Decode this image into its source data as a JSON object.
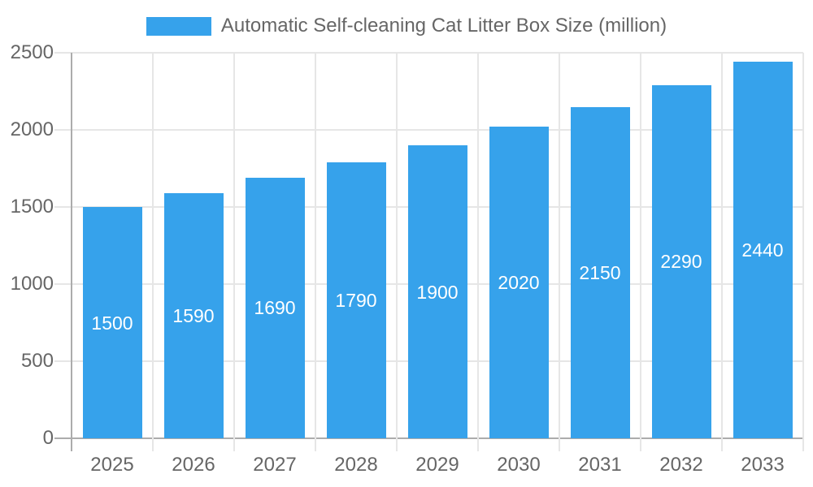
{
  "legend": {
    "label": "Automatic Self-cleaning Cat Litter Box Size (million)"
  },
  "chart_data": {
    "type": "bar",
    "title": "Automatic Self-cleaning Cat Litter Box Size (million)",
    "categories": [
      "2025",
      "2026",
      "2027",
      "2028",
      "2029",
      "2030",
      "2031",
      "2032",
      "2033"
    ],
    "values": [
      1500,
      1590,
      1690,
      1790,
      1900,
      2020,
      2150,
      2290,
      2440
    ],
    "value_labels": [
      "1500",
      "1590",
      "1690",
      "1790",
      "1900",
      "2020",
      "2150",
      "2290",
      "2440"
    ],
    "value_labels_position": "centered-inside-bars",
    "xlabel": "",
    "ylabel": "",
    "ylim": [
      0,
      2500
    ],
    "yticks": [
      "0",
      "500",
      "1000",
      "1500",
      "2000",
      "2500"
    ],
    "grid": true,
    "legend_position": "top-center",
    "colors": {
      "bar": "#36A2EB",
      "bar_label_text": "#FFFFFF",
      "tick_text": "#666666",
      "legend_text": "#666666",
      "grid_line": "#E6E6E6",
      "axis_line": "#ACACAC",
      "background": "#FFFFFF"
    }
  }
}
